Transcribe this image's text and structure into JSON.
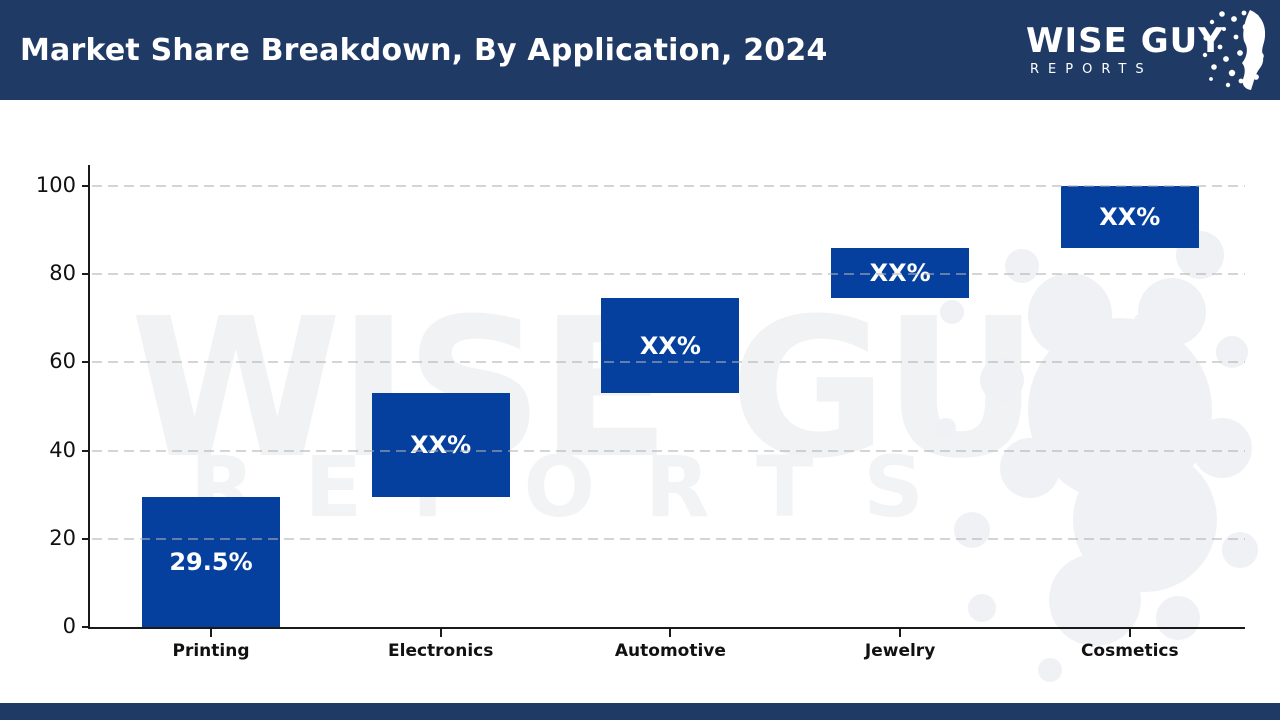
{
  "header": {
    "title": "Market Share Breakdown, By Application, 2024",
    "bg_color": "#203a66",
    "logo": {
      "line1": "WISE GUY",
      "line2": "REPORTS"
    }
  },
  "watermark": {
    "line1": "WISE GUY",
    "line2": "REPORTS"
  },
  "footer": {
    "bg_color": "#203a66"
  },
  "chart_data": {
    "type": "bar",
    "subtype": "waterfall",
    "title": "Market Share Breakdown, By Application, 2024",
    "categories": [
      "Printing",
      "Electronics",
      "Automotive",
      "Jewelry",
      "Cosmetics"
    ],
    "segments": [
      {
        "category": "Printing",
        "start": 0,
        "end": 29.5,
        "label": "29.5%"
      },
      {
        "category": "Electronics",
        "start": 29.5,
        "end": 53,
        "label": "XX%"
      },
      {
        "category": "Automotive",
        "start": 53,
        "end": 74.5,
        "label": "XX%"
      },
      {
        "category": "Jewelry",
        "start": 74.5,
        "end": 86,
        "label": "XX%"
      },
      {
        "category": "Cosmetics",
        "start": 86,
        "end": 100,
        "label": "XX%"
      }
    ],
    "ylim": [
      0,
      100
    ],
    "yticks": [
      0,
      20,
      40,
      60,
      80,
      100
    ],
    "grid": "horizontal-dashed",
    "legend": "none",
    "bar_color": "#05409e",
    "bar_label_color": "#ffffff"
  }
}
